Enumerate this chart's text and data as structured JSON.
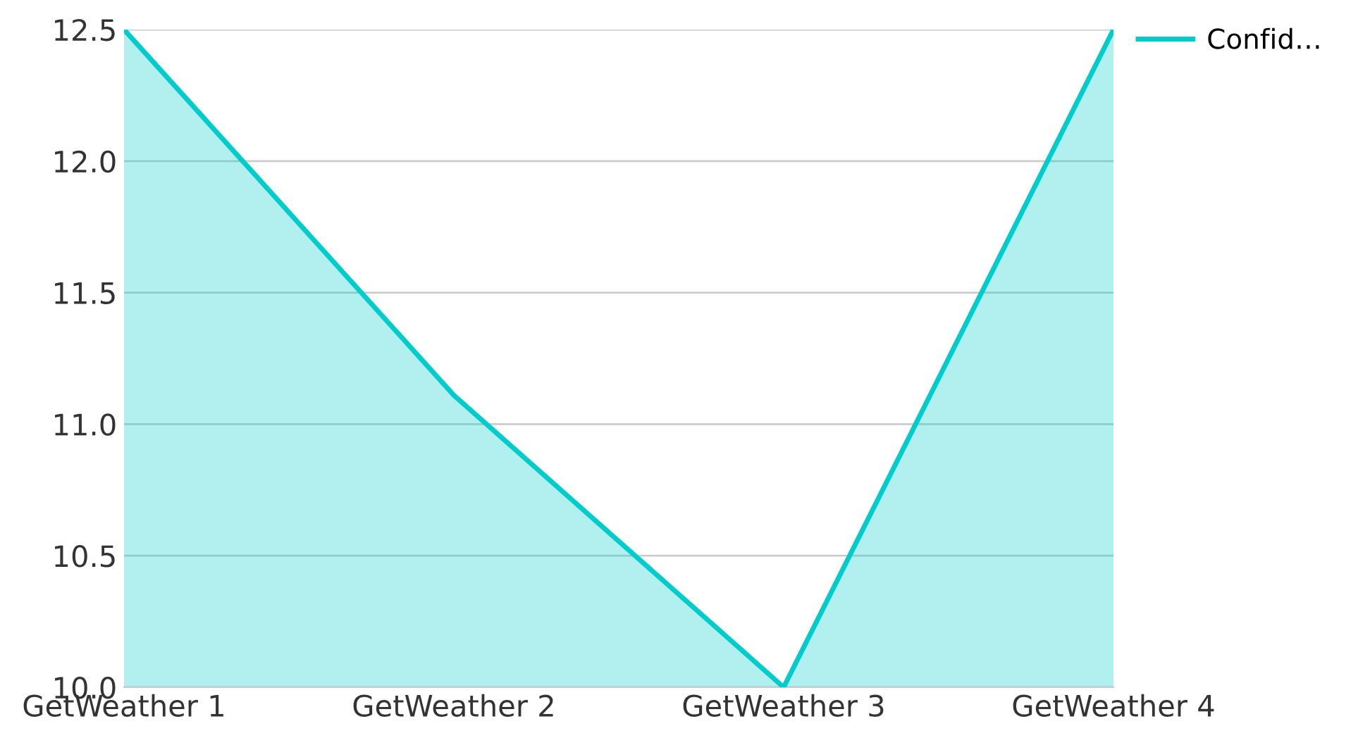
{
  "chart_data": {
    "type": "area",
    "categories": [
      "GetWeather 1",
      "GetWeather 2",
      "GetWeather 3",
      "GetWeather 4"
    ],
    "series": [
      {
        "name": "Confid…",
        "color": "#00cccc",
        "values": [
          12.5,
          11.11,
          10.0,
          12.5
        ]
      }
    ],
    "ylim": [
      10.0,
      12.5
    ],
    "yticks": [
      {
        "value": 10.0,
        "label": "10.0"
      },
      {
        "value": 10.5,
        "label": "10.5"
      },
      {
        "value": 11.0,
        "label": "11.0"
      },
      {
        "value": 11.5,
        "label": "11.5"
      },
      {
        "value": 12.0,
        "label": "12.0"
      },
      {
        "value": 12.5,
        "label": "12.5"
      }
    ],
    "grid": "y",
    "legend": "top right"
  }
}
